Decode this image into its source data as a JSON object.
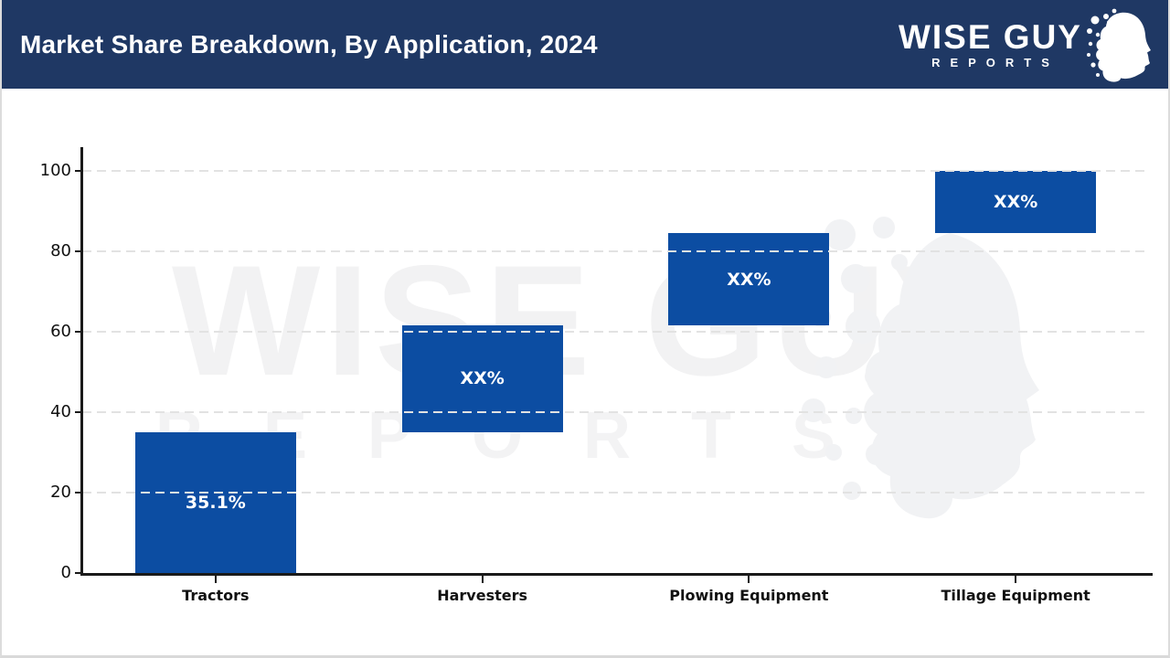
{
  "page": {
    "bg": "#ffffff",
    "edge_border_color": "#d9d9d9"
  },
  "header": {
    "bg_color": "#1f3864",
    "title": "Market Share Breakdown, By Application, 2024",
    "logo_line1": "WISE GUY",
    "logo_line2": "REPORTS"
  },
  "watermark": {
    "line1": "WISE GUY",
    "line2": "REPORTS"
  },
  "chart_data": {
    "type": "bar",
    "variant": "floating-segment-waterfall",
    "title": "Market Share Breakdown, By Application, 2024",
    "categories": [
      "Tractors",
      "Harvesters",
      "Plowing Equipment",
      "Tillage Equipment"
    ],
    "series": [
      {
        "name": "Market Share",
        "segments": [
          {
            "category": "Tractors",
            "start": 0,
            "end": 35.1,
            "label": "35.1%"
          },
          {
            "category": "Harvesters",
            "start": 35.1,
            "end": 61.5,
            "label": "XX%"
          },
          {
            "category": "Plowing Equipment",
            "start": 61.5,
            "end": 84.5,
            "label": "XX%"
          },
          {
            "category": "Tillage Equipment",
            "start": 84.5,
            "end": 100,
            "label": "XX%"
          }
        ]
      }
    ],
    "xlabel": "",
    "ylabel": "",
    "ylim": [
      0,
      100
    ],
    "yticks": [
      0,
      20,
      40,
      60,
      80,
      100
    ],
    "grid": {
      "horizontal": true,
      "style": "dashed",
      "color": "#e2e2e2"
    },
    "legend": "none",
    "bar_color": "#0c4da2",
    "bar_label_color": "#ffffff",
    "axis_color": "#1a1a1a"
  }
}
